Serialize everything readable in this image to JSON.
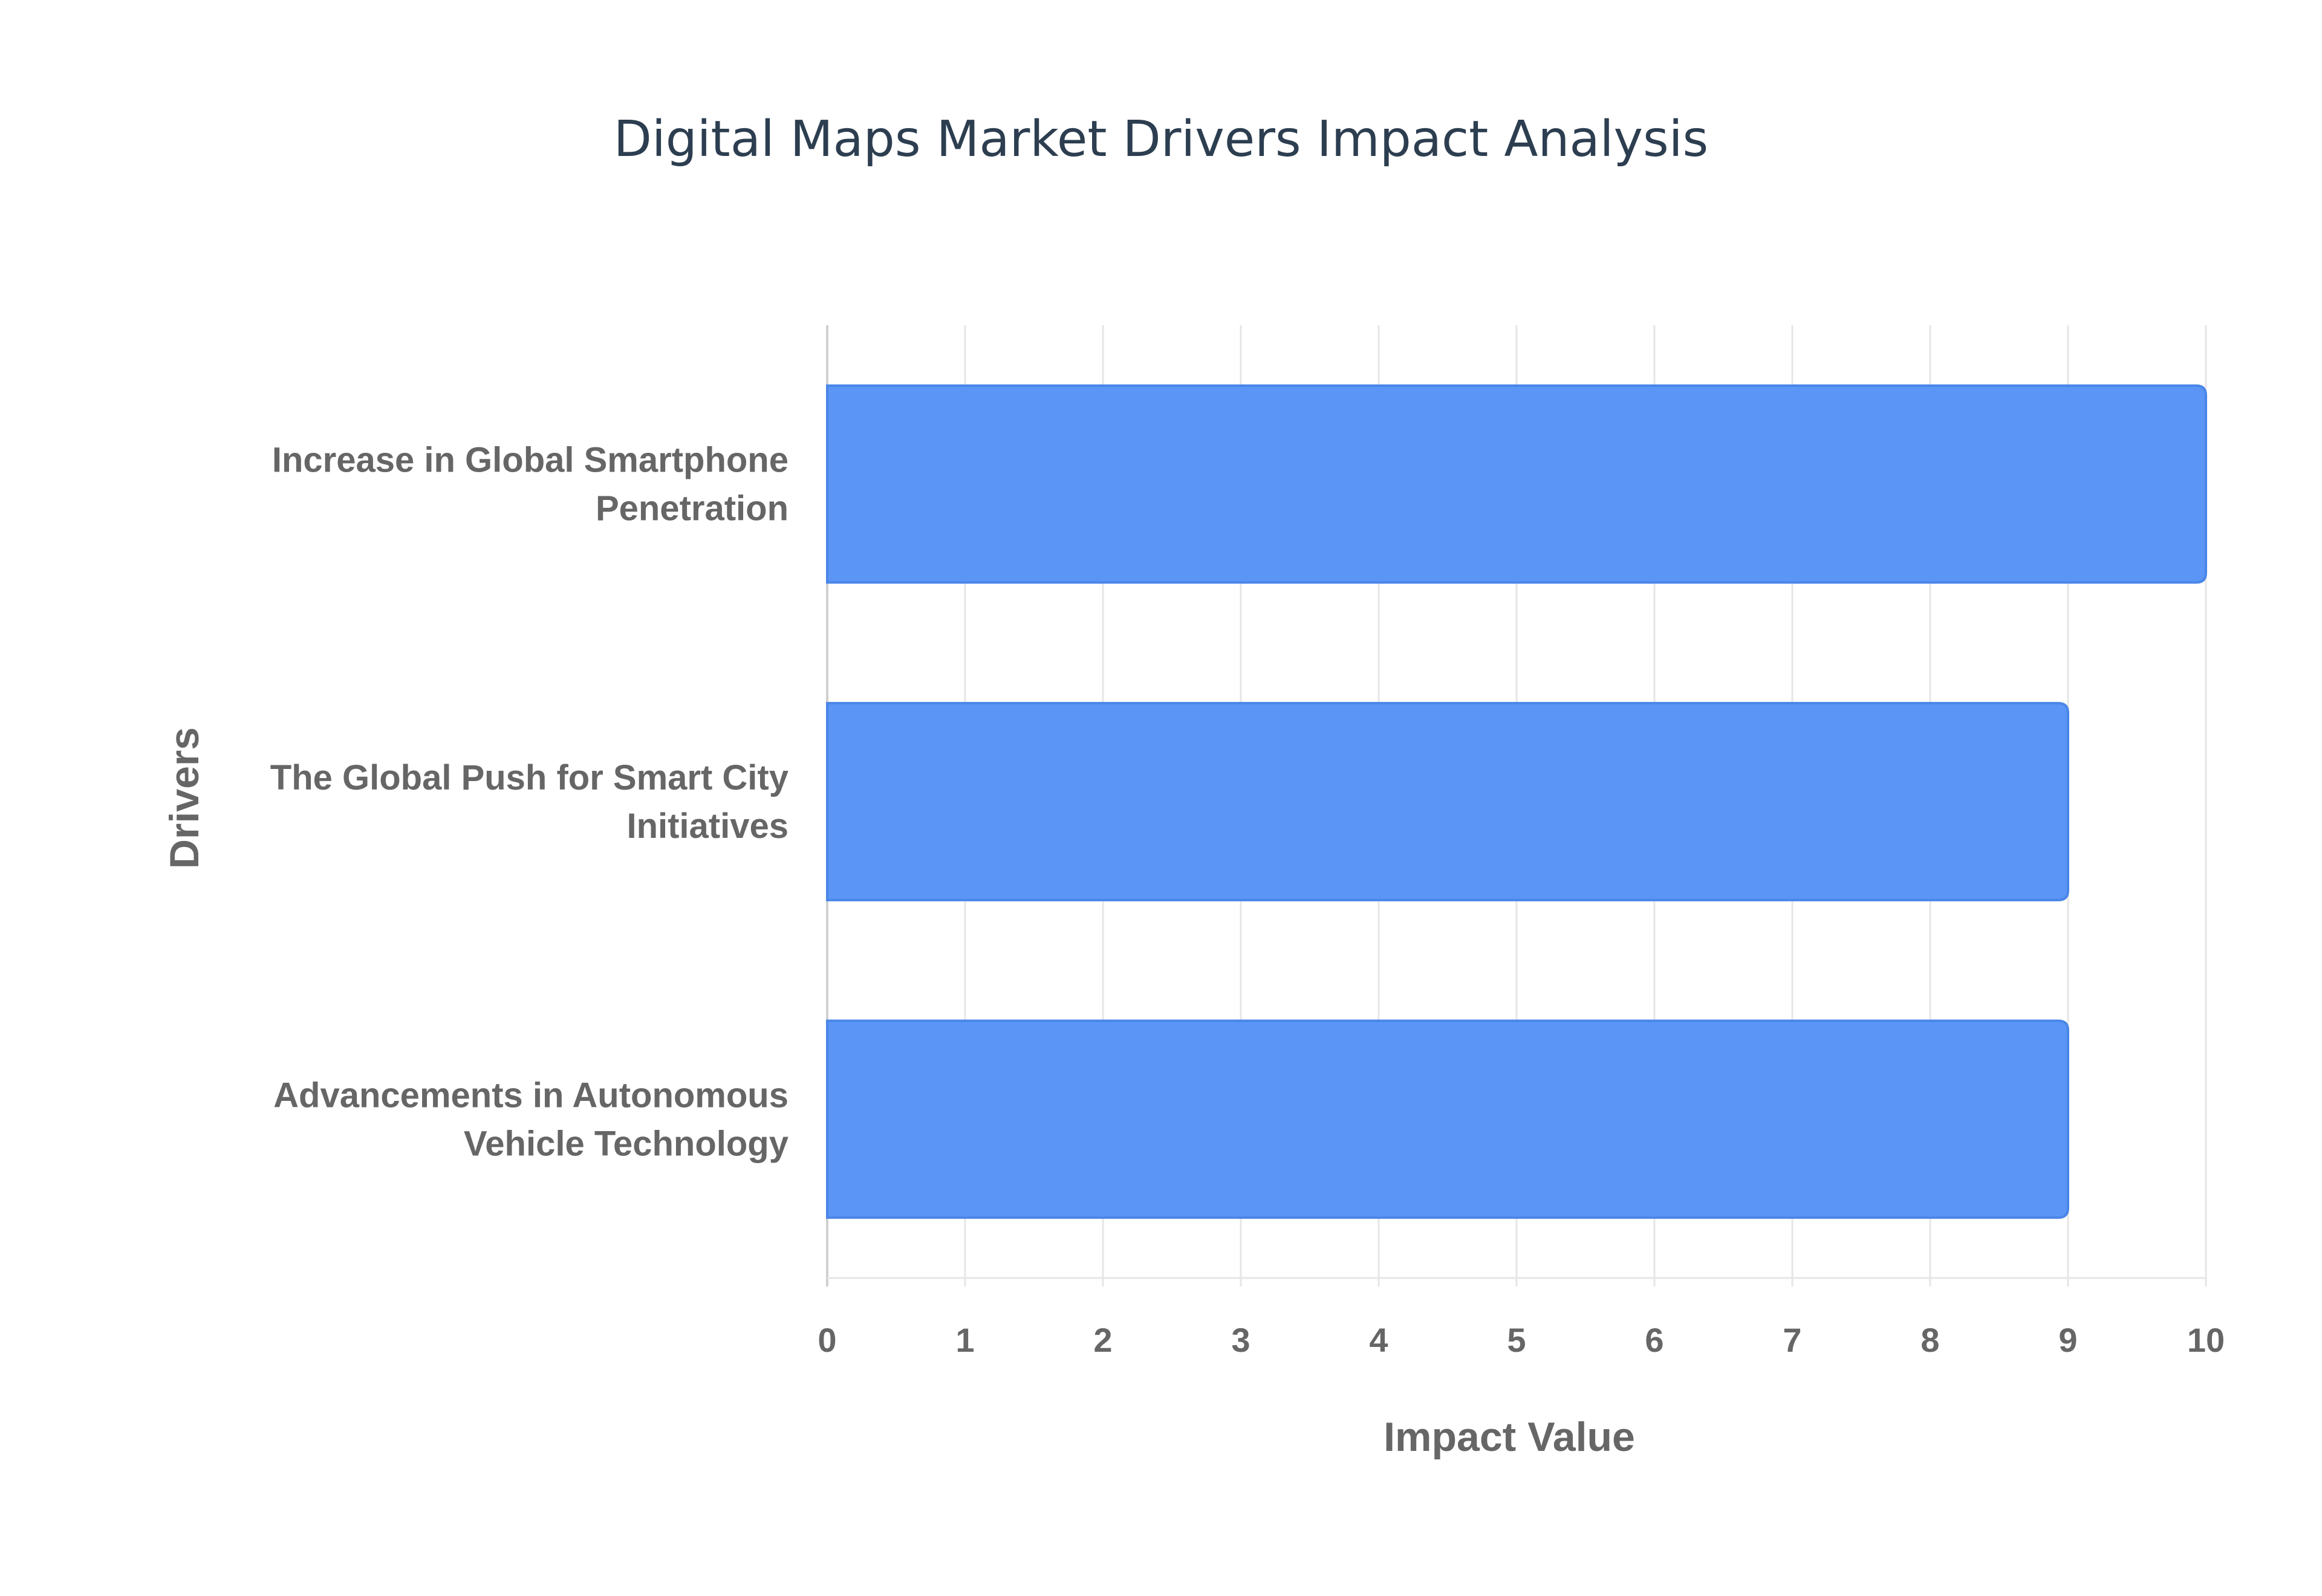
{
  "chart_data": {
    "type": "bar",
    "orientation": "horizontal",
    "title": "Digital Maps Market Drivers Impact Analysis",
    "xlabel": "Impact Value",
    "ylabel": "Drivers",
    "categories": [
      [
        "Increase in Global Smartphone",
        "Penetration"
      ],
      [
        "The Global Push for Smart City",
        "Initiatives"
      ],
      [
        "Advancements in Autonomous",
        "Vehicle Technology"
      ]
    ],
    "values": [
      10,
      9,
      9
    ],
    "xlim": [
      0,
      10
    ],
    "xticks": [
      "0",
      "1",
      "2",
      "3",
      "4",
      "5",
      "6",
      "7",
      "8",
      "9",
      "10"
    ],
    "grid": true,
    "legend": "none",
    "colors": {
      "bar_fill": "#5b95f5",
      "bar_stroke": "#4a86e8",
      "title": "#2c3e50",
      "label": "#666666",
      "grid": "#e6e6e6"
    }
  }
}
